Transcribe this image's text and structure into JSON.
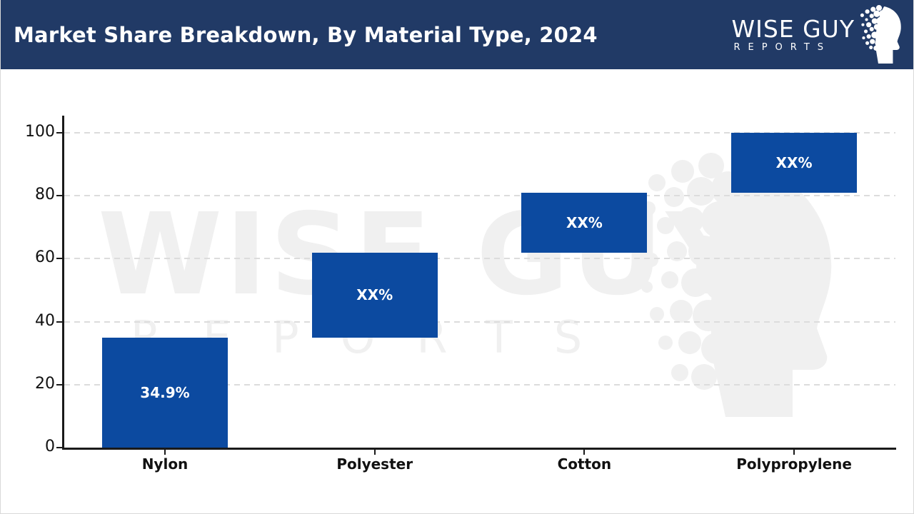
{
  "header": {
    "title": "Market Share Breakdown, By Material Type, 2024",
    "logo": {
      "line1": "WISE GUY",
      "line2": "REPORTS"
    }
  },
  "watermark": {
    "line1": "WISE GUY",
    "line2": "REPORTS"
  },
  "colors": {
    "header_bg": "#213A66",
    "bar": "#0C4AA0",
    "bar_label": "#ffffff",
    "grid": "#dcdcdc",
    "axis": "#1a1a1a",
    "watermark": "#f0f0f0"
  },
  "chart_data": {
    "type": "bar",
    "subtype": "waterfall (floating cumulative bars)",
    "title": "Market Share Breakdown, By Material Type, 2024",
    "categories": [
      "Nylon",
      "Polyester",
      "Cotton",
      "Polypropylene"
    ],
    "segments": [
      {
        "category": "Nylon",
        "from": 0,
        "to": 34.9,
        "label": "34.9%"
      },
      {
        "category": "Polyester",
        "from": 34.9,
        "to": 62,
        "label": "XX%"
      },
      {
        "category": "Cotton",
        "from": 62,
        "to": 81,
        "label": "XX%"
      },
      {
        "category": "Polypropylene",
        "from": 81,
        "to": 100,
        "label": "XX%"
      }
    ],
    "yticks": [
      0,
      20,
      40,
      60,
      80,
      100
    ],
    "ylim": [
      0,
      105
    ],
    "xlabel": "",
    "ylabel": "",
    "grid": "horizontal dashed",
    "legend": "none",
    "bar_color": "#0C4AA0",
    "value_label_color": "#ffffff"
  }
}
